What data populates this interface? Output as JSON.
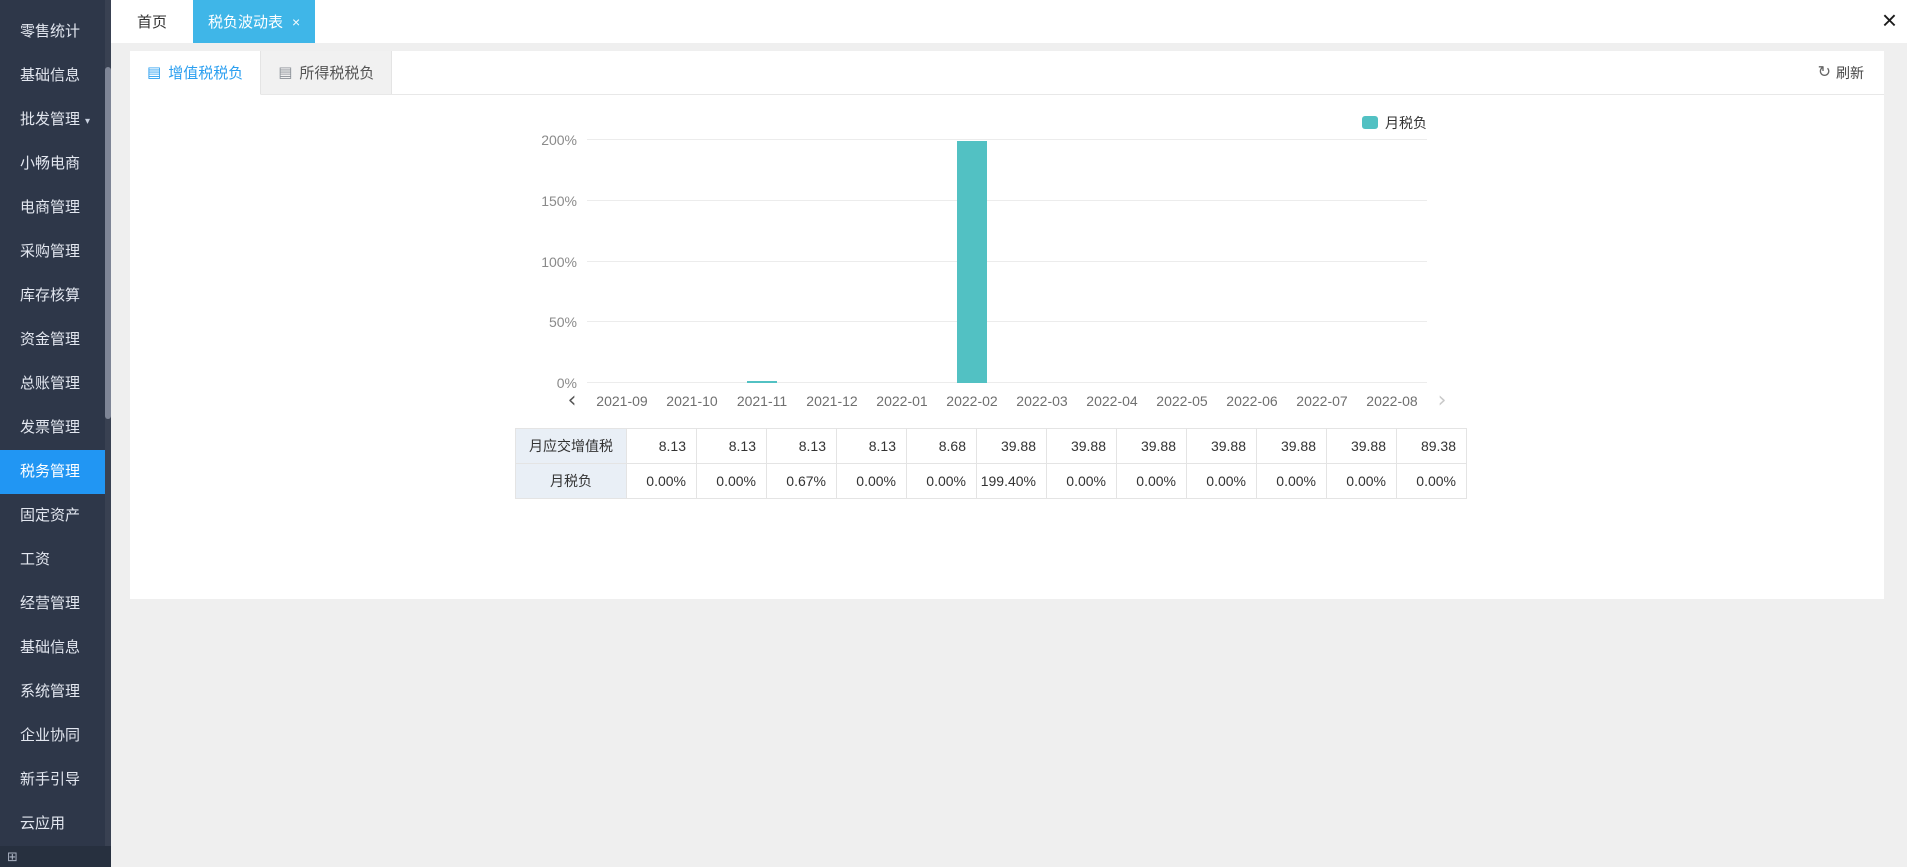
{
  "window": {
    "close": "×"
  },
  "tab_bar": {
    "home": "首页",
    "active_tab": "税负波动表",
    "close": "×"
  },
  "sidebar": {
    "items": [
      {
        "label": "零售统计"
      },
      {
        "label": "基础信息"
      },
      {
        "label": "批发管理",
        "caret": "▾"
      },
      {
        "label": "小畅电商"
      },
      {
        "label": "电商管理"
      },
      {
        "label": "采购管理"
      },
      {
        "label": "库存核算"
      },
      {
        "label": "资金管理"
      },
      {
        "label": "总账管理"
      },
      {
        "label": "发票管理"
      },
      {
        "label": "税务管理",
        "active": true
      },
      {
        "label": "固定资产"
      },
      {
        "label": "工资"
      },
      {
        "label": "经营管理"
      },
      {
        "label": "基础信息"
      },
      {
        "label": "系统管理"
      },
      {
        "label": "企业协同"
      },
      {
        "label": "新手引导"
      },
      {
        "label": "云应用"
      }
    ]
  },
  "content": {
    "tabs": [
      {
        "label": "增值税税负",
        "active": true
      },
      {
        "label": "所得税税负",
        "active": false
      }
    ],
    "refresh": "刷新"
  },
  "pagination": {
    "prev": "‹",
    "next": "›"
  },
  "chart_data": {
    "type": "bar",
    "title": "",
    "categories": [
      "2021-09",
      "2021-10",
      "2021-11",
      "2021-12",
      "2022-01",
      "2022-02",
      "2022-03",
      "2022-04",
      "2022-05",
      "2022-06",
      "2022-07",
      "2022-08"
    ],
    "series": [
      {
        "name": "月税负",
        "values": [
          0.0,
          0.0,
          0.67,
          0.0,
          0.0,
          199.4,
          0.0,
          0.0,
          0.0,
          0.0,
          0.0,
          0.0
        ]
      }
    ],
    "ylim": [
      0,
      200
    ],
    "yticks": [
      {
        "value": 0,
        "label": "0%"
      },
      {
        "value": 50,
        "label": "50%"
      },
      {
        "value": 100,
        "label": "100%"
      },
      {
        "value": 150,
        "label": "150%"
      },
      {
        "value": 200,
        "label": "200%"
      }
    ],
    "legend": {
      "label": "月税负",
      "color": "#52c1c3",
      "position": "top-right"
    },
    "bar_color": "#52c1c3",
    "grid": true,
    "xlabel": "",
    "ylabel": ""
  },
  "table": {
    "rows": [
      {
        "label": "月应交增值税",
        "values": [
          "8.13",
          "8.13",
          "8.13",
          "8.13",
          "8.68",
          "39.88",
          "39.88",
          "39.88",
          "39.88",
          "39.88",
          "39.88",
          "89.38"
        ]
      },
      {
        "label": "月税负",
        "values": [
          "0.00%",
          "0.00%",
          "0.67%",
          "0.00%",
          "0.00%",
          "199.40%",
          "0.00%",
          "0.00%",
          "0.00%",
          "0.00%",
          "0.00%",
          "0.00%"
        ]
      }
    ]
  },
  "colors": {
    "sidebar_bg": "#2e3749",
    "sidebar_active": "#2196f3",
    "tab_active": "#3fb6e8",
    "bar": "#52c1c3",
    "content_bg": "#efefef",
    "label_cell_bg": "#e9eff6"
  }
}
